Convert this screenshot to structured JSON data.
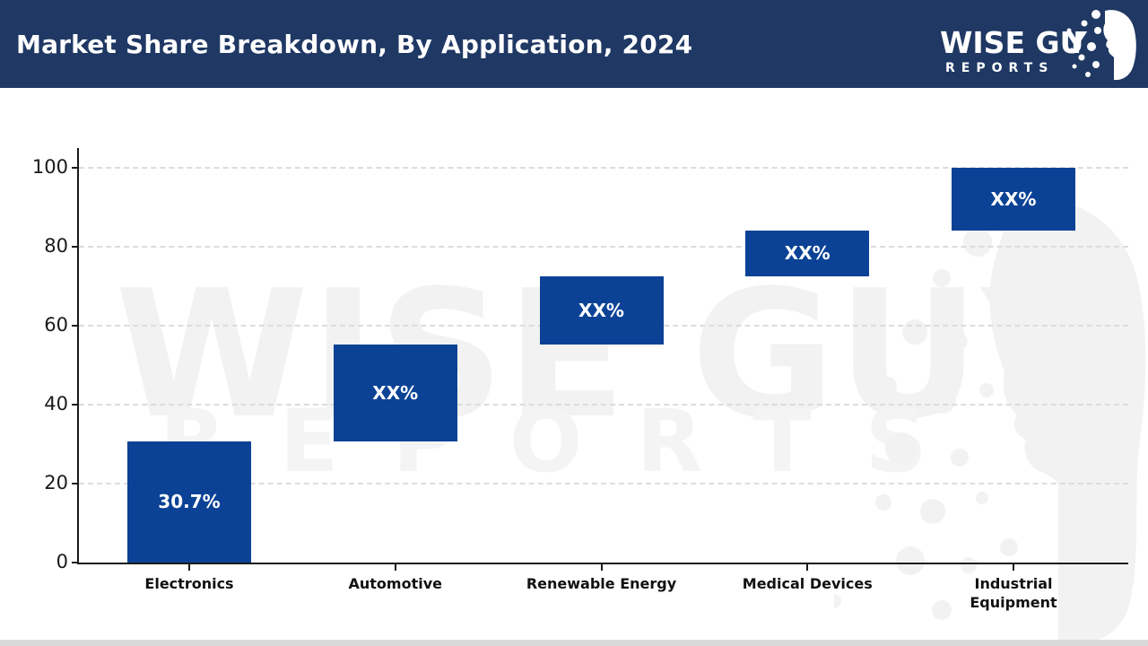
{
  "header": {
    "title": "Market Share Breakdown, By Application, 2024",
    "logo": {
      "line1": "WISE GUY",
      "line2": "R E P O R T S"
    }
  },
  "watermark": {
    "line1": "WISE GUY",
    "line2": "REPORTS"
  },
  "chart_data": {
    "type": "bar",
    "subtype": "floating-waterfall",
    "title": "Market Share Breakdown, By Application, 2024",
    "categories": [
      "Electronics",
      "Automotive",
      "Renewable Energy",
      "Medical Devices",
      "Industrial\nEquipment"
    ],
    "series": [
      {
        "name": "Market Share",
        "segments": [
          {
            "category": "Electronics",
            "start": 0,
            "end": 30.7,
            "label": "30.7%"
          },
          {
            "category": "Automotive",
            "start": 30.7,
            "end": 55.3,
            "label": "XX%"
          },
          {
            "category": "Renewable Energy",
            "start": 55.3,
            "end": 72.6,
            "label": "XX%"
          },
          {
            "category": "Medical Devices",
            "start": 72.6,
            "end": 84.2,
            "label": "XX%"
          },
          {
            "category": "Industrial Equipment",
            "start": 84.2,
            "end": 100,
            "label": "XX%"
          }
        ]
      }
    ],
    "xlabel": "",
    "ylabel": "",
    "ylim": [
      0,
      105
    ],
    "yticks": [
      0,
      20,
      40,
      60,
      80,
      100
    ],
    "grid": "horizontal-dashed",
    "legend": "none"
  },
  "colors": {
    "header_bg": "#1F3864",
    "bar": "#0B4295",
    "axis": "#1a1a1a",
    "grid": "#dcdcdc",
    "watermark": "#f2f2f2",
    "footer": "#d9d9d9",
    "title_text": "#ffffff"
  }
}
